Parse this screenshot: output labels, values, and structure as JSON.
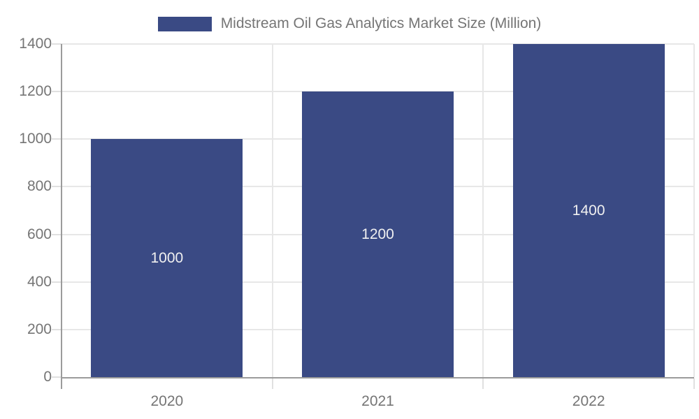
{
  "chart_data": {
    "type": "bar",
    "title": "Midstream Oil Gas Analytics Market Size (Million)",
    "legend": {
      "position": "top",
      "entries": [
        "Midstream Oil Gas Analytics Market Size (Million)"
      ]
    },
    "categories": [
      "2020",
      "2021",
      "2022"
    ],
    "values": [
      1000,
      1200,
      1400
    ],
    "data_labels": [
      "1000",
      "1200",
      "1400"
    ],
    "xlabel": "",
    "ylabel": "",
    "ylim": [
      0,
      1400
    ],
    "yticks": [
      0,
      200,
      400,
      600,
      800,
      1000,
      1200,
      1400
    ],
    "grid": true,
    "style": {
      "bar_color": "#3a4a84",
      "bar_label_color": "#f0f0f0",
      "axis_line_color": "#9b9b9b",
      "grid_color": "#e7e7e7",
      "tick_color": "#e0e0e0",
      "text_color": "#757575",
      "background": "#ffffff"
    }
  }
}
